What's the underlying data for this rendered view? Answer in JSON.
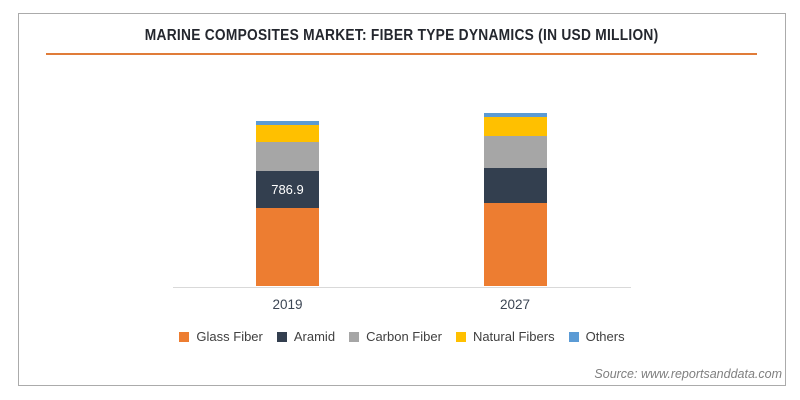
{
  "header": {
    "title": "MARINE COMPOSITES MARKET: FIBER TYPE DYNAMICS (IN USD MILLION)"
  },
  "footer": {
    "source": "Source: www.reportsanddata.com"
  },
  "colors": {
    "accent_rule": "#E07C39",
    "border": "#ABABAB",
    "axis_line": "#D9D9D9",
    "title_text": "#24272E",
    "tick_text": "#3C4654",
    "legend_text": "#404040",
    "source_text": "#7F7F7F",
    "bar_label_text": "#FFFFFF"
  },
  "chart_data": {
    "type": "bar",
    "stacked": true,
    "title": "MARINE COMPOSITES MARKET: FIBER TYPE DYNAMICS (IN USD MILLION)",
    "unit": "USD Million",
    "categories": [
      "2019",
      "2027"
    ],
    "series": [
      {
        "name": "Glass Fiber",
        "color": "#ED7D31",
        "values": [
          1620,
          1740
        ],
        "labels": [
          "",
          ""
        ]
      },
      {
        "name": "Aramid",
        "color": "#333F4F",
        "values": [
          786.9,
          730
        ],
        "labels": [
          "786.9",
          ""
        ]
      },
      {
        "name": "Carbon Fiber",
        "color": "#A6A6A6",
        "values": [
          610,
          660
        ],
        "labels": [
          "",
          ""
        ]
      },
      {
        "name": "Natural Fibers",
        "color": "#FFC000",
        "values": [
          350,
          390
        ],
        "labels": [
          "",
          ""
        ]
      },
      {
        "name": "Others",
        "color": "#5B9BD5",
        "values": [
          80,
          100
        ],
        "labels": [
          "",
          ""
        ]
      }
    ],
    "legend_position": "bottom",
    "grid": false,
    "y_axis_visible": false,
    "ylim": [
      0,
      3700
    ]
  }
}
